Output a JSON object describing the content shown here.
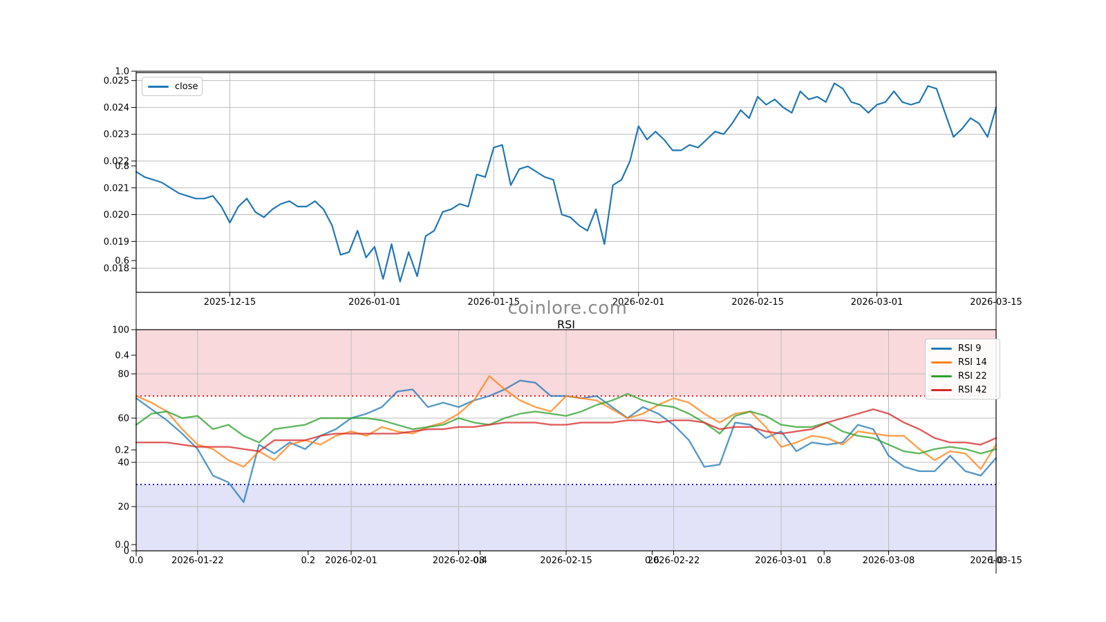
{
  "watermark": {
    "text": "coinlore.com"
  },
  "colors": {
    "close_line": "#1f77b4",
    "rsi9": "#1f77b4",
    "rsi14": "#ff7f0e",
    "rsi22": "#2ca02c",
    "rsi42": "#d62728",
    "overbought_band": "#f9d9dc",
    "oversold_band": "#e2e2f8",
    "overbought_dotted": "#e50000",
    "oversold_dotted": "#0000cd",
    "grid": "#bbbbbb",
    "watermark_gray": "#8b8b8b"
  },
  "chart_data": [
    {
      "type": "line",
      "title": "",
      "legend": [
        "close"
      ],
      "legend_position": "upper-left",
      "grid": true,
      "ylim": [
        0.0171,
        0.0253
      ],
      "y_ticks": [
        {
          "label": "0.025",
          "v": 0.025
        },
        {
          "label": "0.024",
          "v": 0.024
        },
        {
          "label": "0.023",
          "v": 0.023
        },
        {
          "label": "0.022",
          "v": 0.022
        },
        {
          "label": "0.021",
          "v": 0.021
        },
        {
          "label": "0.020",
          "v": 0.02
        },
        {
          "label": "0.019",
          "v": 0.019
        },
        {
          "label": "0.018",
          "v": 0.018
        }
      ],
      "x_ticks": [
        {
          "label": "2025-12-15",
          "f": 0.10891
        },
        {
          "label": "2026-01-01",
          "f": 0.27723
        },
        {
          "label": "2026-01-15",
          "f": 0.41584
        },
        {
          "label": "2026-02-01",
          "f": 0.58416
        },
        {
          "label": "2026-02-15",
          "f": 0.72277
        },
        {
          "label": "2026-03-01",
          "f": 0.86139
        },
        {
          "label": "2026-03-15",
          "f": 1.0
        }
      ],
      "series": [
        {
          "name": "close",
          "color": "#1f77b4",
          "values": [
            0.0216,
            0.0214,
            0.0213,
            0.0212,
            0.021,
            0.0208,
            0.0207,
            0.0206,
            0.0206,
            0.0207,
            0.0203,
            0.0197,
            0.0203,
            0.0206,
            0.0201,
            0.0199,
            0.0202,
            0.0204,
            0.0205,
            0.0203,
            0.0203,
            0.0205,
            0.0202,
            0.0196,
            0.0185,
            0.0186,
            0.0194,
            0.0184,
            0.0188,
            0.0176,
            0.0189,
            0.0175,
            0.0186,
            0.0177,
            0.0192,
            0.0194,
            0.0201,
            0.0202,
            0.0204,
            0.0203,
            0.0215,
            0.0214,
            0.0225,
            0.0226,
            0.0211,
            0.0217,
            0.0218,
            0.0216,
            0.0214,
            0.0213,
            0.02,
            0.0199,
            0.0196,
            0.0194,
            0.0202,
            0.0189,
            0.0211,
            0.0213,
            0.022,
            0.0233,
            0.0228,
            0.0231,
            0.0228,
            0.0224,
            0.0224,
            0.0226,
            0.0225,
            0.0228,
            0.0231,
            0.023,
            0.0234,
            0.0239,
            0.0236,
            0.0244,
            0.0241,
            0.0243,
            0.024,
            0.0238,
            0.0246,
            0.0243,
            0.0244,
            0.0242,
            0.0249,
            0.0247,
            0.0242,
            0.0241,
            0.0238,
            0.0241,
            0.0242,
            0.0246,
            0.0242,
            0.0241,
            0.0242,
            0.0248,
            0.0247,
            0.0238,
            0.0229,
            0.0232,
            0.0236,
            0.0234,
            0.0229,
            0.024
          ]
        }
      ]
    },
    {
      "type": "line",
      "title": "RSI",
      "legend_position": "upper-right",
      "grid": true,
      "ylim": [
        0,
        100
      ],
      "overbought_level": 70,
      "oversold_level": 30,
      "bands": [
        {
          "from": 70,
          "to": 100,
          "color": "#f9d9dc"
        },
        {
          "from": 0,
          "to": 30,
          "color": "#e2e2f8"
        }
      ],
      "hlines": [
        {
          "v": 70,
          "color": "#e50000",
          "style": "dotted"
        },
        {
          "v": 30,
          "color": "#0000cd",
          "style": "dotted"
        }
      ],
      "y_ticks": [
        {
          "label": "100",
          "v": 100
        },
        {
          "label": "80",
          "v": 80
        },
        {
          "label": "60",
          "v": 60
        },
        {
          "label": "40",
          "v": 40
        },
        {
          "label": "20",
          "v": 20
        },
        {
          "label": "0",
          "v": 0
        }
      ],
      "x_ticks": [
        {
          "label": "2026-01-22",
          "f": 0.07143
        },
        {
          "label": "2026-02-01",
          "f": 0.25
        },
        {
          "label": "2026-02-08",
          "f": 0.375
        },
        {
          "label": "2026-02-15",
          "f": 0.5
        },
        {
          "label": "2026-02-22",
          "f": 0.625
        },
        {
          "label": "2026-03-01",
          "f": 0.75
        },
        {
          "label": "2026-03-08",
          "f": 0.875
        },
        {
          "label": "2026-03-15",
          "f": 1.0
        }
      ],
      "series": [
        {
          "name": "RSI 9",
          "color": "#1f77b4",
          "values": [
            69,
            64,
            59,
            53,
            46,
            34,
            31,
            22,
            48,
            44,
            49,
            46,
            52,
            55,
            60,
            62,
            65,
            72,
            73,
            65,
            67,
            65,
            68,
            70,
            73,
            77,
            76,
            70,
            70,
            69,
            70,
            65,
            60,
            65,
            62,
            57,
            50,
            38,
            39,
            58,
            57,
            51,
            54,
            45,
            49,
            48,
            49,
            57,
            55,
            43,
            38,
            36,
            36,
            43,
            36,
            34,
            42
          ]
        },
        {
          "name": "RSI 14",
          "color": "#ff7f0e",
          "values": [
            70,
            67,
            63,
            55,
            48,
            46,
            41,
            38,
            45,
            41,
            48,
            50,
            48,
            52,
            54,
            52,
            56,
            54,
            53,
            56,
            58,
            62,
            68,
            79,
            73,
            68,
            65,
            63,
            70,
            69,
            68,
            64,
            60,
            62,
            66,
            69,
            67,
            62,
            58,
            62,
            63,
            56,
            47,
            49,
            52,
            51,
            48,
            54,
            53,
            52,
            52,
            46,
            41,
            45,
            44,
            37,
            48
          ]
        },
        {
          "name": "RSI 22",
          "color": "#2ca02c",
          "values": [
            57,
            62,
            63,
            60,
            61,
            55,
            57,
            52,
            49,
            55,
            56,
            57,
            60,
            60,
            60,
            60,
            59,
            57,
            55,
            56,
            57,
            60,
            58,
            57,
            60,
            62,
            63,
            62,
            61,
            63,
            66,
            68,
            71,
            68,
            66,
            65,
            62,
            58,
            53,
            61,
            63,
            61,
            57,
            56,
            56,
            58,
            54,
            52,
            51,
            48,
            45,
            44,
            46,
            47,
            46,
            44,
            46
          ]
        },
        {
          "name": "RSI 42",
          "color": "#d62728",
          "values": [
            49,
            49,
            49,
            48,
            47,
            47,
            47,
            46,
            45,
            50,
            50,
            50,
            52,
            53,
            53,
            53,
            53,
            53,
            54,
            55,
            55,
            56,
            56,
            57,
            58,
            58,
            58,
            57,
            57,
            58,
            58,
            58,
            59,
            59,
            58,
            59,
            59,
            58,
            55,
            56,
            56,
            54,
            53,
            54,
            55,
            58,
            60,
            62,
            64,
            62,
            58,
            55,
            51,
            49,
            49,
            48,
            51
          ]
        }
      ]
    }
  ],
  "overlay_axis": {
    "y_tick_labels": [
      "1.0",
      "0.8",
      "0.6",
      "0.4",
      "0.2",
      "0.0"
    ],
    "x_tick_labels": [
      "0.0",
      "0.2",
      "0.4",
      "0.6",
      "0.8",
      "1.0"
    ]
  }
}
